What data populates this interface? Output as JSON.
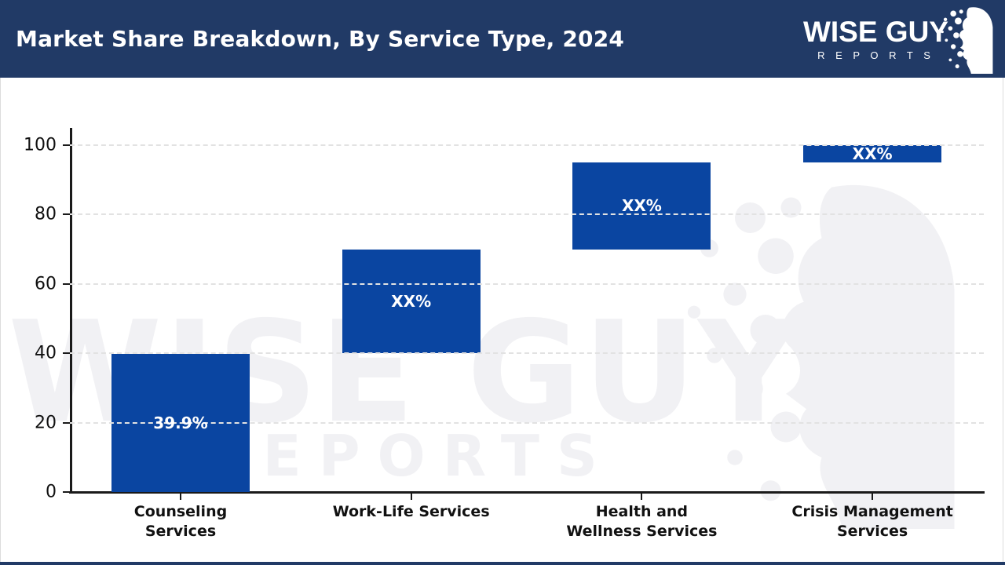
{
  "header": {
    "title": "Market Share Breakdown, By Service Type, 2024",
    "logo": {
      "line1": "WISE GUY",
      "line2": "R E P O R T S"
    },
    "bg_color": "#213a66"
  },
  "watermark": {
    "line1": "WISE GUY",
    "line2": "REPORTS"
  },
  "footer": {
    "bg_color": "#213a66"
  },
  "chart_data": {
    "type": "bar",
    "subtype": "waterfall",
    "title": "Market Share Breakdown, By Service Type, 2024",
    "categories": [
      "Counseling\nServices",
      "Work-Life Services",
      "Health and\nWellness Services",
      "Crisis Management\nServices"
    ],
    "segments": [
      {
        "category": "Counseling Services",
        "from": 0,
        "to": 39.9,
        "label": "39.9%"
      },
      {
        "category": "Work-Life Services",
        "from": 40,
        "to": 70,
        "label": "XX%"
      },
      {
        "category": "Health and Wellness Services",
        "from": 70,
        "to": 95,
        "label": "XX%"
      },
      {
        "category": "Crisis Management Services",
        "from": 95,
        "to": 100,
        "label": "XX%"
      }
    ],
    "xlabel": "",
    "ylabel": "",
    "ylim": [
      0,
      100
    ],
    "yticks": [
      0,
      20,
      40,
      60,
      80,
      100
    ],
    "grid": "dashed-horizontal-over-bars",
    "legend": null,
    "bar_color": "#0a45a1",
    "bar_label_color": "#ffffff",
    "gridline_color": "#e2e2e2",
    "axis_color": "#1a1a1a"
  }
}
